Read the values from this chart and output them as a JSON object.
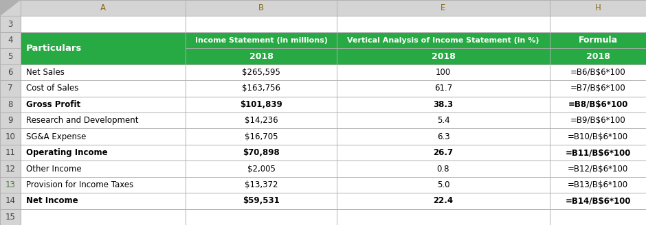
{
  "col_headers_row4": [
    "Particulars",
    "Income Statement (in millions)",
    "Vertical Analysis of Income Statement (in %)",
    "Formula"
  ],
  "col_headers_row5": [
    "",
    "2018",
    "2018",
    "2018"
  ],
  "rows": [
    {
      "label": "Net Sales",
      "bold": false,
      "income": "$265,595",
      "pct": "100",
      "formula": "=B6/B$6*100"
    },
    {
      "label": "Cost of Sales",
      "bold": false,
      "income": "$163,756",
      "pct": "61.7",
      "formula": "=B7/B$6*100"
    },
    {
      "label": "Gross Profit",
      "bold": true,
      "income": "$101,839",
      "pct": "38.3",
      "formula": "=B8/B$6*100"
    },
    {
      "label": "Research and Development",
      "bold": false,
      "income": "$14,236",
      "pct": "5.4",
      "formula": "=B9/B$6*100"
    },
    {
      "label": "SG&A Expense",
      "bold": false,
      "income": "$16,705",
      "pct": "6.3",
      "formula": "=B10/B$6*100"
    },
    {
      "label": "Operating Income",
      "bold": true,
      "income": "$70,898",
      "pct": "26.7",
      "formula": "=B11/B$6*100"
    },
    {
      "label": "Other Income",
      "bold": false,
      "income": "$2,005",
      "pct": "0.8",
      "formula": "=B12/B$6*100"
    },
    {
      "label": "Provision for Income Taxes",
      "bold": false,
      "income": "$13,372",
      "pct": "5.0",
      "formula": "=B13/B$6*100"
    },
    {
      "label": "Net Income",
      "bold": true,
      "income": "$59,531",
      "pct": "22.4",
      "formula": "=B14/B$6*100"
    }
  ],
  "header_bg": "#27A944",
  "header_text": "#FFFFFF",
  "body_bg": "#FFFFFF",
  "body_text": "#000000",
  "grid_color": "#B0B0B0",
  "outer_bg": "#D4D4D4",
  "row_num_bg": "#D4D4D4",
  "row_num_text": "#404040",
  "col_letter_bg": "#D4D4D4",
  "col_letter_text": "#8B6914",
  "row3_bg": "#FFFFFF",
  "row15_bg": "#FFFFFF",
  "col_letters": [
    "A",
    "B",
    "E",
    "H"
  ],
  "row_numbers": [
    "3",
    "4",
    "5",
    "6",
    "7",
    "8",
    "9",
    "10",
    "11",
    "12",
    "13",
    "14",
    "15"
  ],
  "note_row13_numcolor": "#4F7942"
}
